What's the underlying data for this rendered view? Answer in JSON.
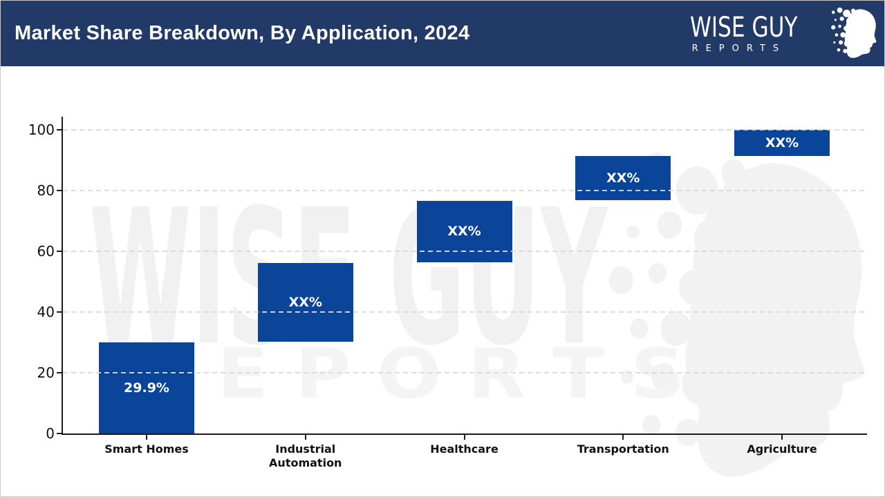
{
  "header": {
    "title": "Market Share Breakdown, By Application, 2024",
    "logo": {
      "name": "WISE GUY",
      "sub": "REPORTS"
    }
  },
  "watermark": {
    "line1": "WISE GUY",
    "line2": "R E P O R T S"
  },
  "colors": {
    "header_bg": "#213a67",
    "bar": "#0b4599",
    "grid": "#dadada",
    "axis": "#1a1a1a",
    "watermark": "#f1f1f1"
  },
  "chart_data": {
    "type": "bar",
    "subtype": "waterfall",
    "title": "Market Share Breakdown, By Application, 2024",
    "categories": [
      "Smart Homes",
      "Industrial Automation",
      "Healthcare",
      "Transportation",
      "Agriculture"
    ],
    "bars": [
      {
        "category": "Smart Homes",
        "start": 0,
        "end": 29.9,
        "label": "29.9%"
      },
      {
        "category": "Industrial Automation",
        "start": 30.2,
        "end": 56.2,
        "label": "XX%"
      },
      {
        "category": "Healthcare",
        "start": 56.4,
        "end": 76.6,
        "label": "XX%"
      },
      {
        "category": "Transportation",
        "start": 76.9,
        "end": 91.4,
        "label": "XX%"
      },
      {
        "category": "Agriculture",
        "start": 91.4,
        "end": 100,
        "label": "XX%"
      }
    ],
    "xlabel": "",
    "ylabel": "",
    "yticks": [
      0,
      20,
      40,
      60,
      80,
      100
    ],
    "ylim": [
      0,
      104.5
    ],
    "grid": true,
    "grid_style": "dashed",
    "legend": false
  }
}
